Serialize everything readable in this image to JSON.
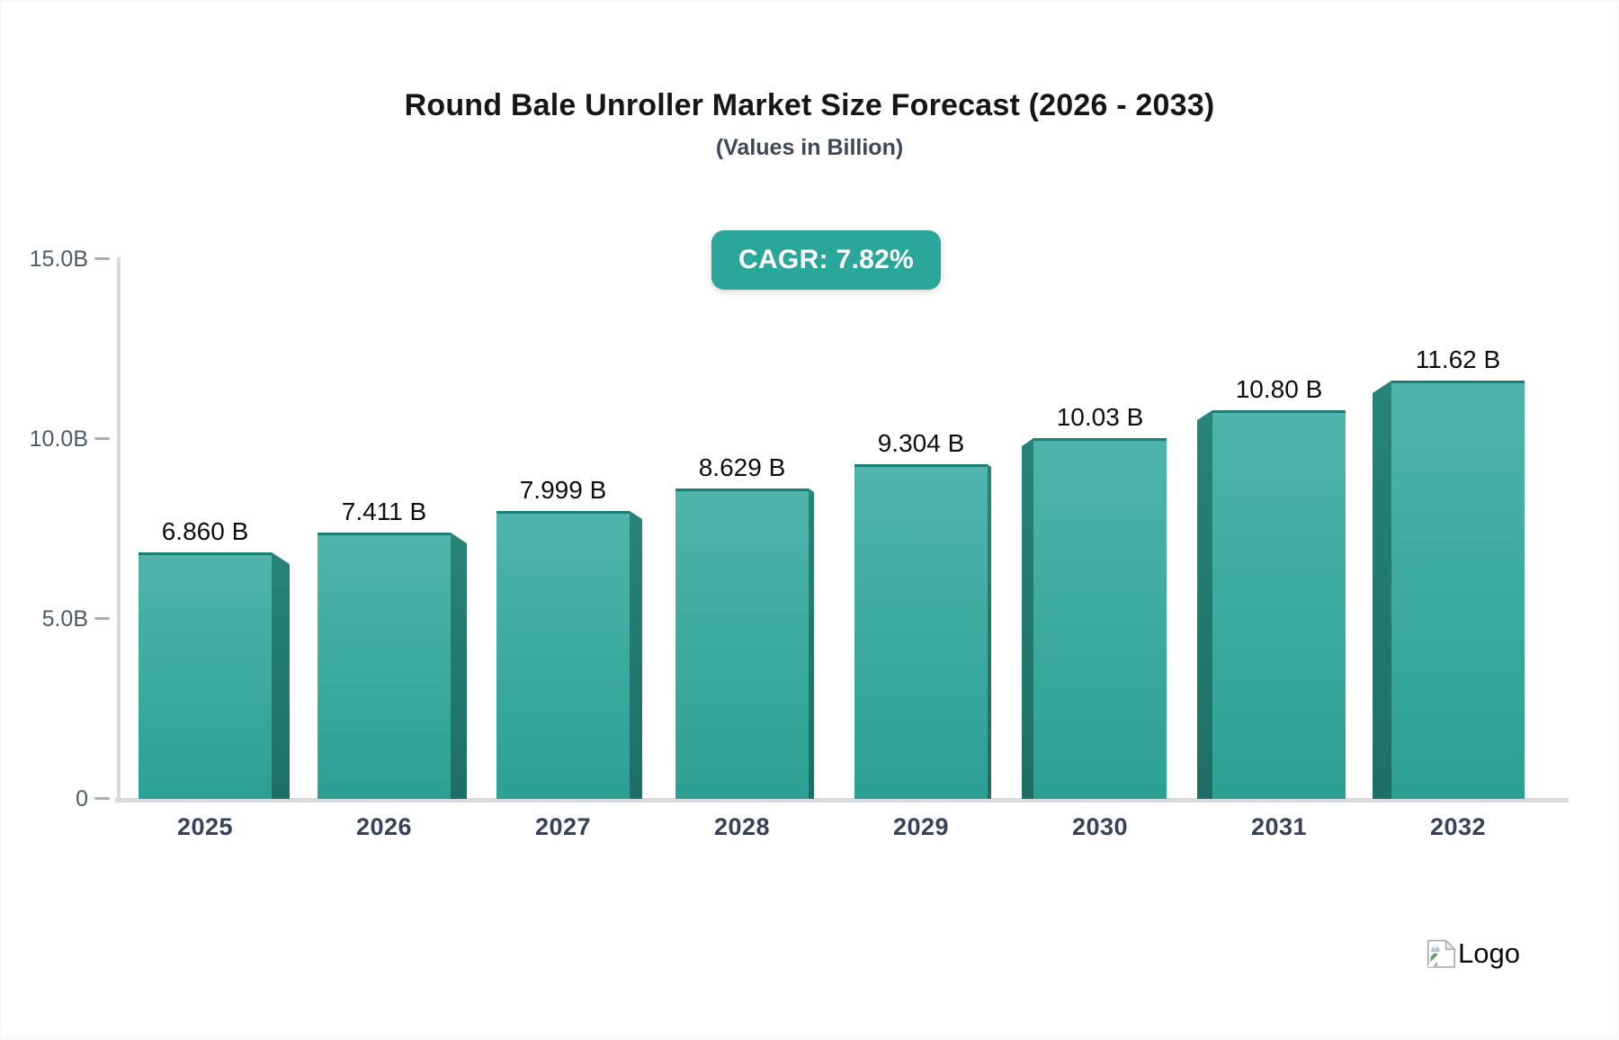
{
  "chart": {
    "title": "Round Bale Unroller Market Size Forecast (2026 - 2033)",
    "subtitle": "(Values in Billion)",
    "cagr_badge": "CAGR: 7.82%"
  },
  "chart_data": {
    "type": "bar",
    "title": "Round Bale Unroller Market Size Forecast (2026 - 2033)",
    "subtitle": "(Values in Billion)",
    "cagr_text": "CAGR: 7.82%",
    "cagr_percent": 7.82,
    "unit": "Billion",
    "categories": [
      "2025",
      "2026",
      "2027",
      "2028",
      "2029",
      "2030",
      "2031",
      "2032"
    ],
    "values": [
      6.86,
      7.411,
      7.999,
      8.629,
      9.304,
      10.03,
      10.8,
      11.62
    ],
    "value_labels": [
      "6.860 B",
      "7.411 B",
      "7.999 B",
      "8.629 B",
      "9.304 B",
      "10.03 B",
      "10.80 B",
      "11.62 B"
    ],
    "ylim": [
      0,
      15
    ],
    "yticks": [
      {
        "label": "0",
        "value": 0
      },
      {
        "label": "5.0B",
        "value": 5
      },
      {
        "label": "10.0B",
        "value": 10
      },
      {
        "label": "15.0B",
        "value": 15
      }
    ],
    "grid": false,
    "legend": false,
    "bar_style": "pseudo-3d"
  },
  "colors": {
    "bar_face_top": "#4FB5AB",
    "bar_face_bottom": "#2CA093",
    "bar_top_edge": "#1A8076",
    "bar_side_top": "#278478",
    "bar_side_bottom": "#1D6F65",
    "badge_bg": "#2AA79A",
    "badge_text": "#FFFFFF",
    "axis_line": "#D7DBE0",
    "tick_dash": "#A6ADB6",
    "tick_text": "#4D5A6B",
    "xlabel_text": "#36425A",
    "value_label_text": "#0E0E0E",
    "title_text": "#161616",
    "subtitle_text": "#3D4858"
  },
  "footer": {
    "logo_text": "Logo"
  }
}
